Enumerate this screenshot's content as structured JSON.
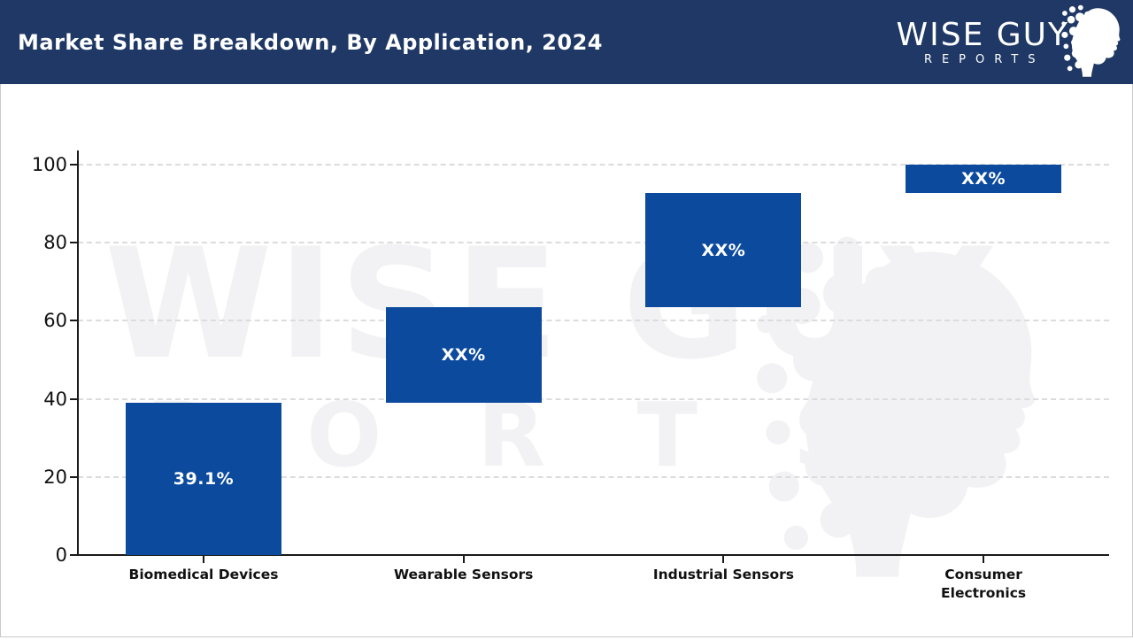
{
  "header": {
    "title": "Market Share Breakdown, By Application, 2024",
    "bg_color": "#1f3865",
    "logo": {
      "primary": "WISE GUY",
      "secondary": "REPORTS"
    }
  },
  "watermark": {
    "primary": "WISE GUY",
    "secondary": "PORTS"
  },
  "chart_data": {
    "type": "bar",
    "subtype": "waterfall",
    "title": "Market Share Breakdown, By Application, 2024",
    "categories": [
      "Biomedical Devices",
      "Wearable Sensors",
      "Industrial Sensors",
      "Consumer Electronics"
    ],
    "bars": [
      {
        "category": "Biomedical Devices",
        "start": 0,
        "end": 39.1,
        "label": "39.1%"
      },
      {
        "category": "Wearable Sensors",
        "start": 39.1,
        "end": 63.5,
        "label": "XX%"
      },
      {
        "category": "Industrial Sensors",
        "start": 63.5,
        "end": 92.7,
        "label": "XX%"
      },
      {
        "category": "Consumer Electronics",
        "start": 92.7,
        "end": 100,
        "label": "XX%"
      }
    ],
    "y_ticks": [
      0,
      20,
      40,
      60,
      80,
      100
    ],
    "ylim": [
      0,
      100
    ],
    "xlabel": "",
    "ylabel": "",
    "bar_color": "#0c4a9e",
    "grid": "horizontal-dashed",
    "legend": "none"
  }
}
